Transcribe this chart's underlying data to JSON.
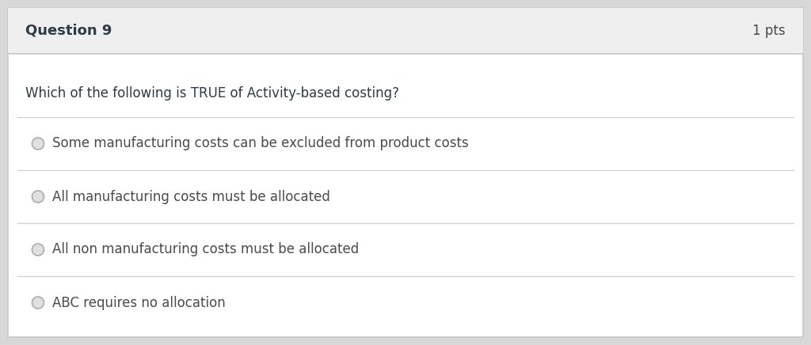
{
  "question_label": "Question 9",
  "pts_label": "1 pts",
  "question_text": "Which of the following is TRUE of Activity-based costing?",
  "options": [
    "Some manufacturing costs can be excluded from product costs",
    "All manufacturing costs must be allocated",
    "All non manufacturing costs must be allocated",
    "ABC requires no allocation"
  ],
  "header_bg": "#efefef",
  "body_bg": "#ffffff",
  "outer_bg": "#d8d8d8",
  "border_color": "#c8c8c8",
  "header_text_color": "#2d3b45",
  "question_text_color": "#2d3b45",
  "option_text_color": "#4a4a4a",
  "pts_text_color": "#4a4a4a",
  "radio_edge_color": "#b0b0b0",
  "radio_face_color": "#e0e0e0",
  "divider_color": "#d0d0d0",
  "header_font_size": 13,
  "pts_font_size": 12,
  "question_font_size": 12,
  "option_font_size": 12,
  "fig_width": 10.24,
  "fig_height": 4.36,
  "dpi": 100
}
